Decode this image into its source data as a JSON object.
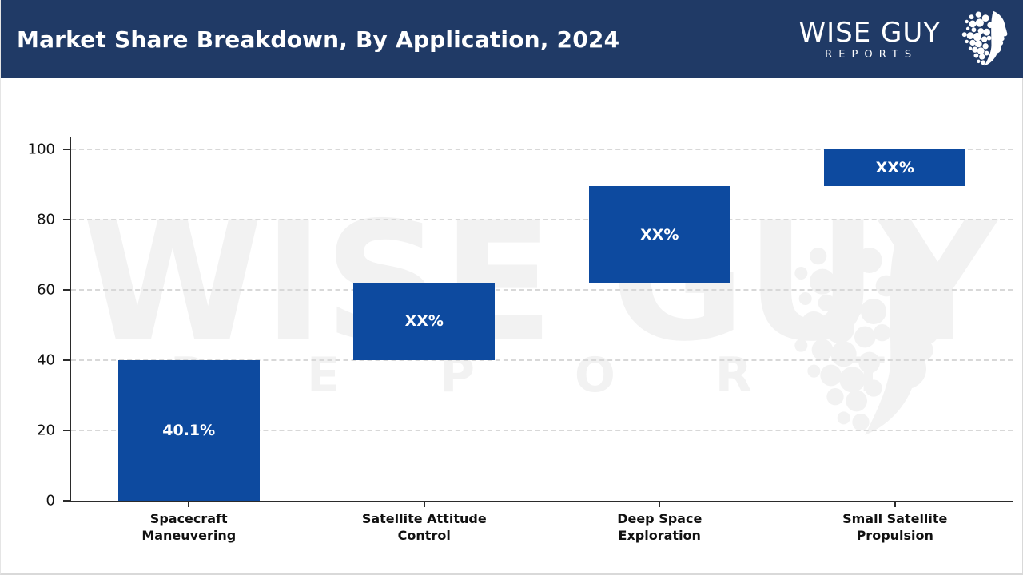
{
  "header": {
    "title": "Market Share Breakdown, By Application, 2024",
    "logo": {
      "line1": "WISE GUY",
      "line2": "REPORTS"
    }
  },
  "watermark": {
    "line1": "WISE GUY",
    "line2": "R E P O R T S"
  },
  "colors": {
    "header_bg": "#203a66",
    "header_text": "#ffffff",
    "bar": "#0d4a9f",
    "bar_label_text": "#ffffff",
    "grid": "#d8d8d8",
    "axis": "#2b2b2b",
    "tick_text": "#111111",
    "watermark": "#f2f2f2",
    "page_bg": "#ffffff"
  },
  "chart_data": {
    "type": "bar",
    "subtype": "waterfall",
    "title": "Market Share Breakdown, By Application, 2024",
    "xlabel": "",
    "ylabel": "",
    "grid": "horizontal-dashed",
    "legend": "none",
    "ylim": [
      0,
      103.4
    ],
    "yticks": [
      0,
      20,
      40,
      60,
      80,
      100
    ],
    "categories": [
      "Spacecraft Maneuvering",
      "Satellite Attitude Control",
      "Deep Space Exploration",
      "Small Satellite Propulsion"
    ],
    "bars": [
      {
        "category": "Spacecraft Maneuvering",
        "start": 0,
        "end": 40.1,
        "value": 40.1,
        "label": "40.1%"
      },
      {
        "category": "Satellite Attitude Control",
        "start": 40.1,
        "end": 62,
        "value": 21.9,
        "label": "XX%"
      },
      {
        "category": "Deep Space Exploration",
        "start": 62,
        "end": 89.5,
        "value": 27.5,
        "label": "XX%"
      },
      {
        "category": "Small Satellite Propulsion",
        "start": 89.5,
        "end": 100,
        "value": 10.5,
        "label": "XX%"
      }
    ]
  }
}
